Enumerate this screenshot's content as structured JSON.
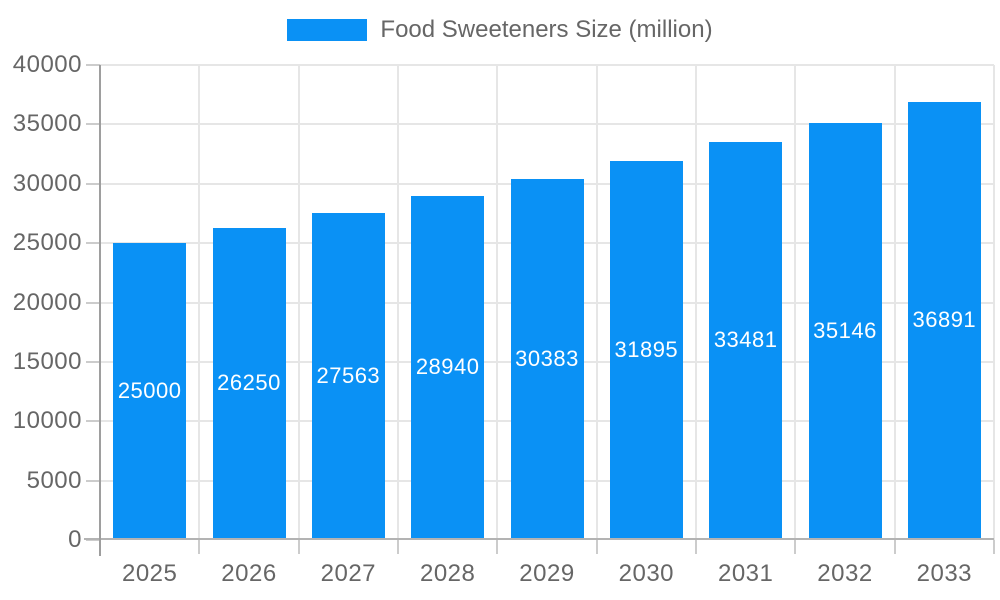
{
  "legend": {
    "label": "Food Sweeteners Size (million)"
  },
  "colors": {
    "bar": "#0a91f5",
    "bar_label": "#ffffff",
    "axis_text": "#666666",
    "grid_line": "#e6e6e6",
    "axis_line": "#9e9e9e",
    "baseline": "#b3b3b3",
    "tick": "#cccccc",
    "background": "#ffffff"
  },
  "chart_data": {
    "type": "bar",
    "title": "Food Sweeteners Size (million)",
    "categories": [
      "2025",
      "2026",
      "2027",
      "2028",
      "2029",
      "2030",
      "2031",
      "2032",
      "2033"
    ],
    "values": [
      25000,
      26250,
      27563,
      28940,
      30383,
      31895,
      33481,
      35146,
      36891
    ],
    "bar_value_labels": [
      "25000",
      "26250",
      "27563",
      "28940",
      "30383",
      "31895",
      "33481",
      "35146",
      "36891"
    ],
    "xlabel": "",
    "ylabel": "",
    "ylim": [
      0,
      40000
    ],
    "yticks": [
      0,
      5000,
      10000,
      15000,
      20000,
      25000,
      30000,
      35000,
      40000
    ],
    "grid": true,
    "legend_position": "top-center",
    "value_label_style": "white-centered-inside-bars"
  }
}
